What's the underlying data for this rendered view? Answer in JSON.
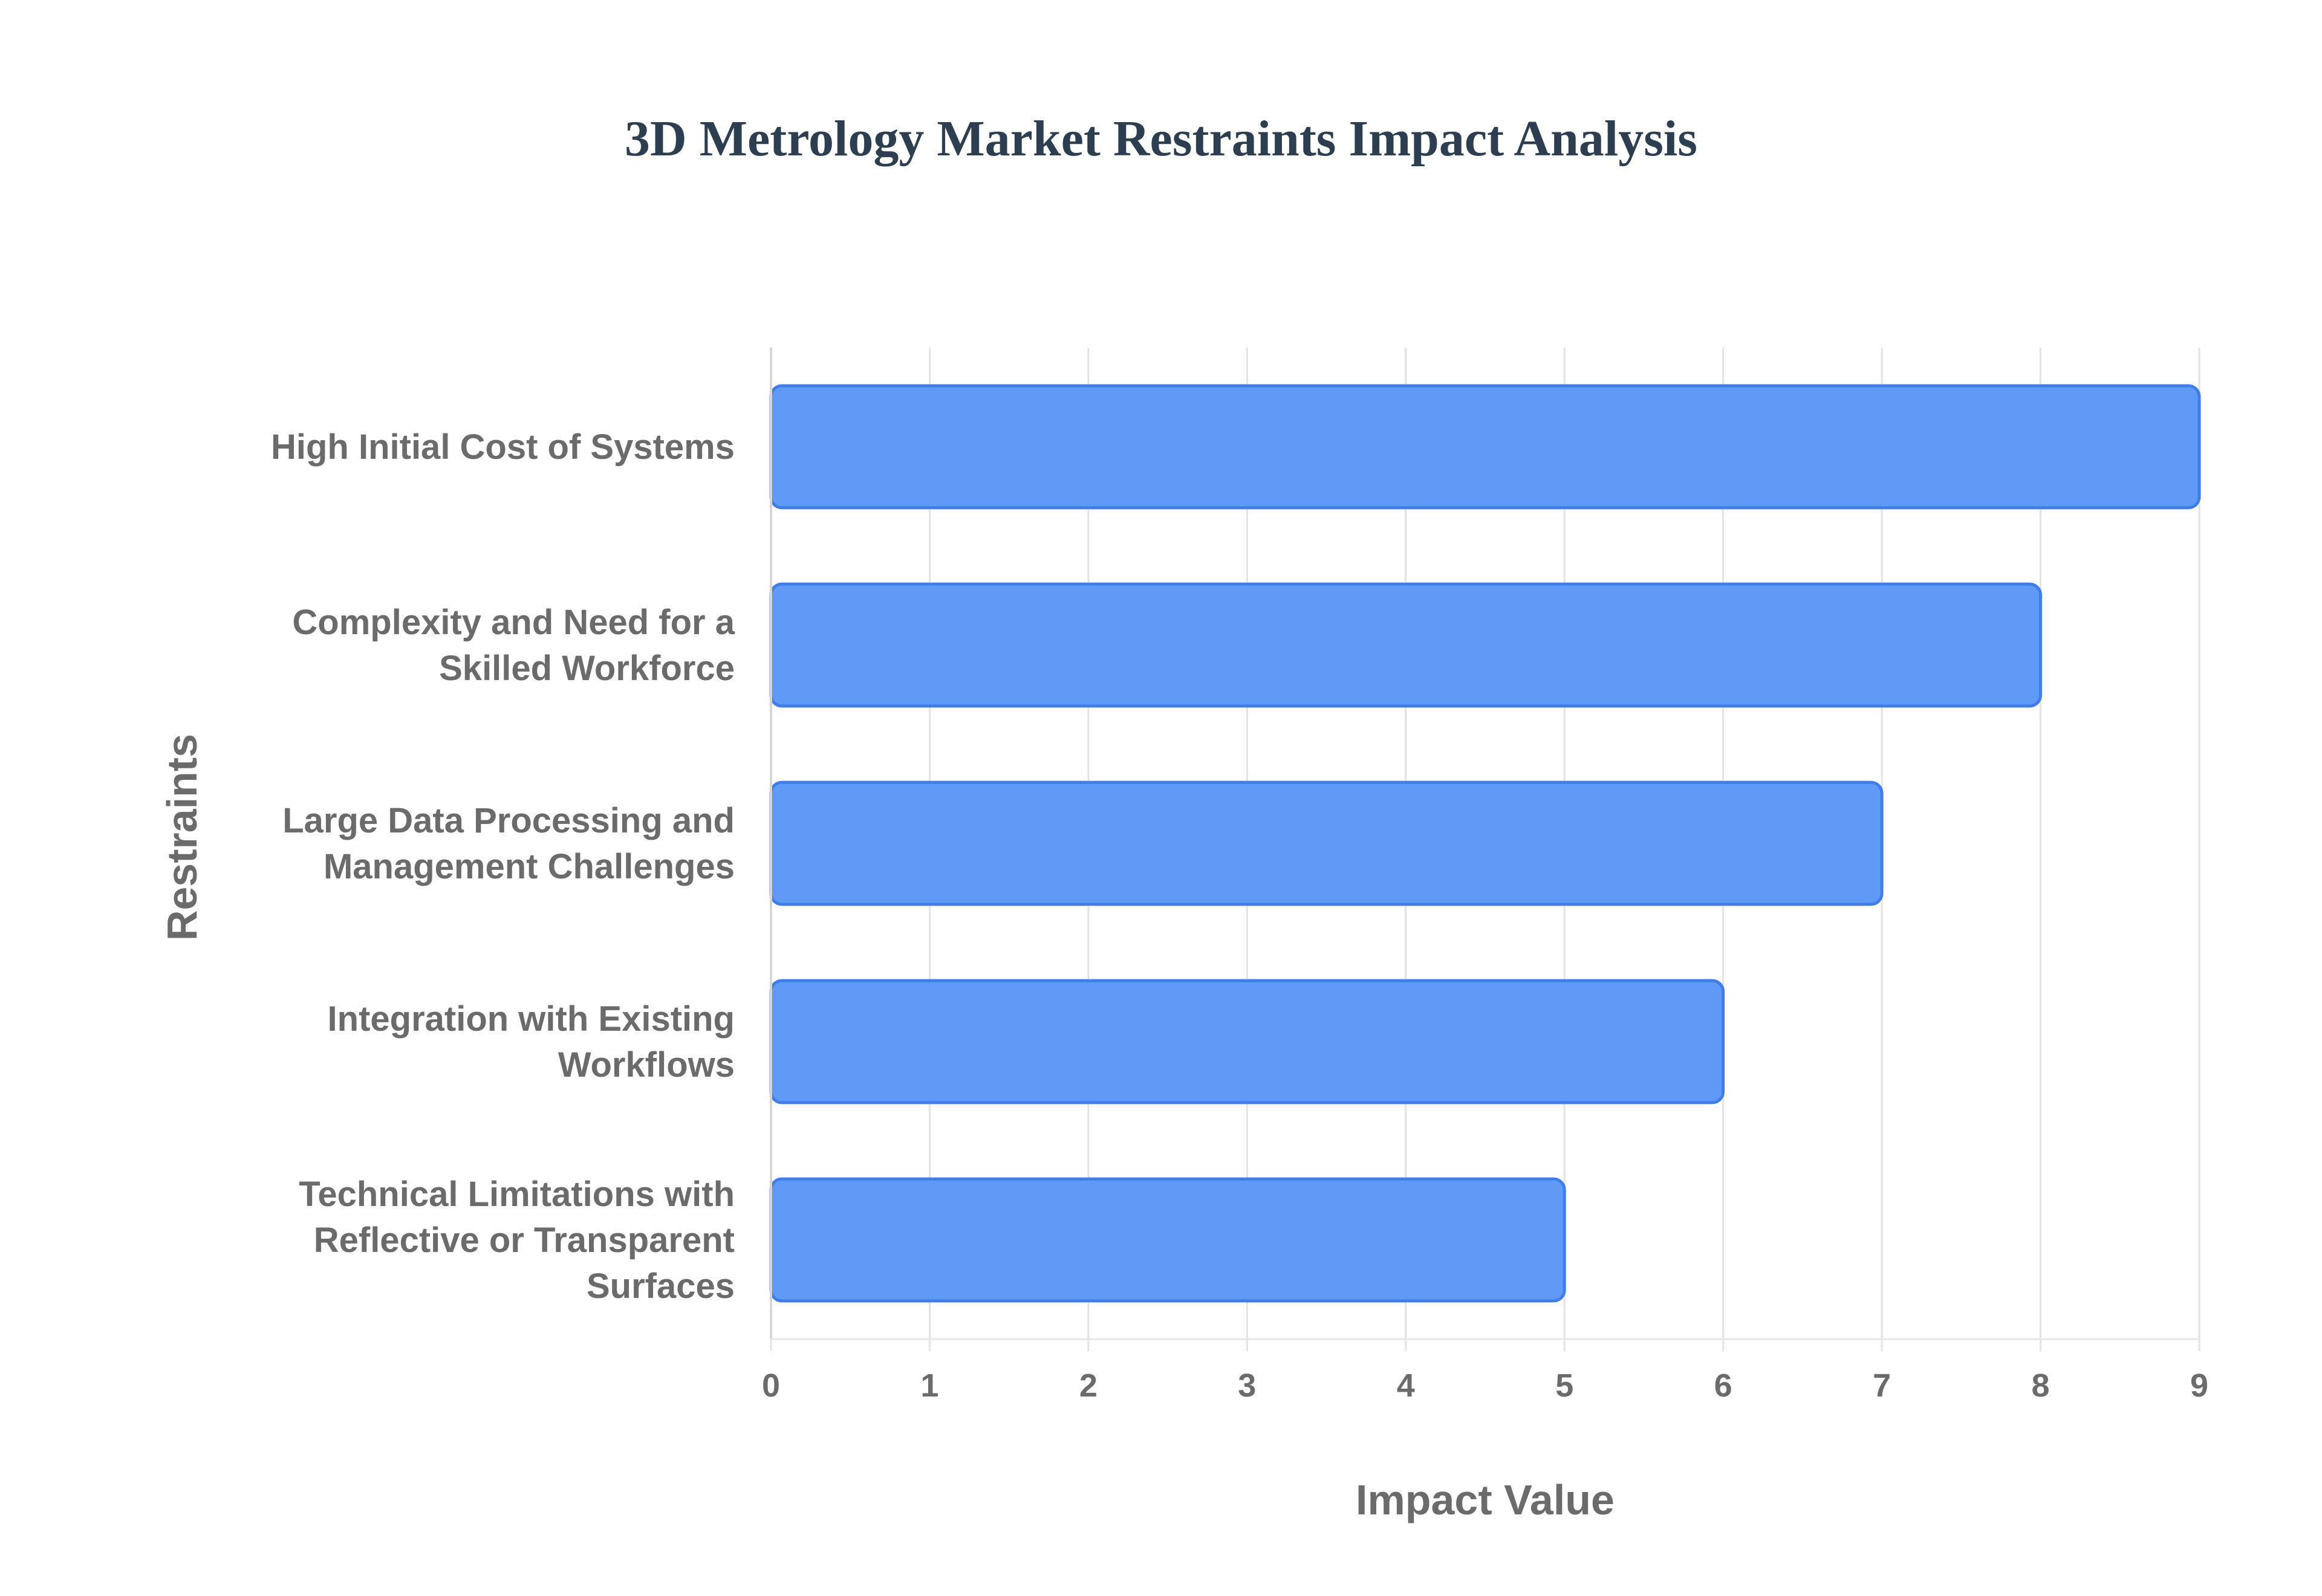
{
  "chart_data": {
    "type": "bar",
    "orientation": "horizontal",
    "title": "3D Metrology Market Restraints Impact Analysis",
    "xlabel": "Impact Value",
    "ylabel": "Restraints",
    "categories": [
      [
        "High Initial Cost of Systems"
      ],
      [
        "Complexity and Need for a",
        "Skilled Workforce"
      ],
      [
        "Large Data Processing and",
        "Management Challenges"
      ],
      [
        "Integration with Existing",
        "Workflows"
      ],
      [
        "Technical Limitations with",
        "Reflective or Transparent",
        "Surfaces"
      ]
    ],
    "values": [
      9,
      8,
      7,
      6,
      5
    ],
    "xlim": [
      0,
      9
    ],
    "xticks": [
      "0",
      "1",
      "2",
      "3",
      "4",
      "5",
      "6",
      "7",
      "8",
      "9"
    ],
    "grid": true,
    "legend": "none",
    "colors": {
      "bar_fill": "#6199f6",
      "bar_stroke": "#3f7ee8",
      "grid": "#e3e3e3",
      "text": "#6b6b6b",
      "title": "#2c3e50"
    }
  }
}
